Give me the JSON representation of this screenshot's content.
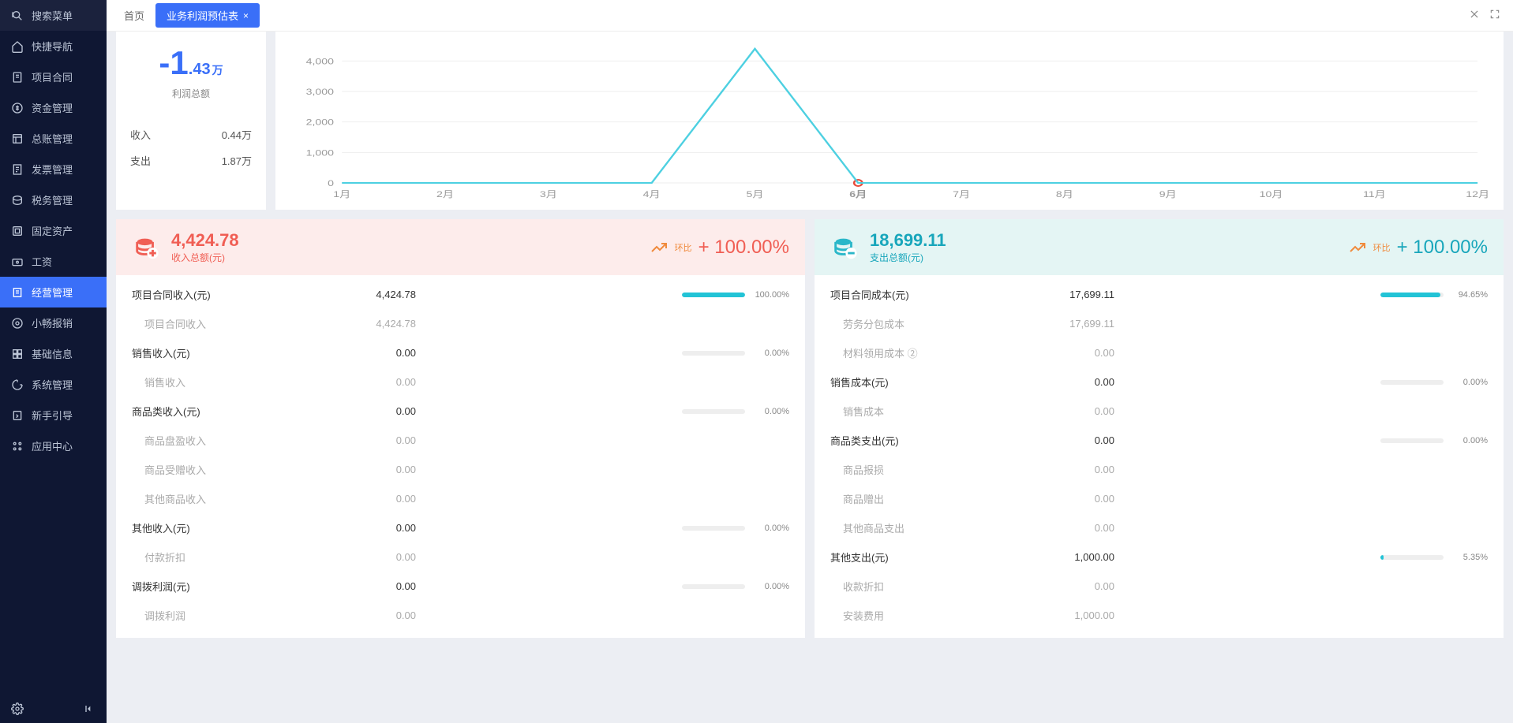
{
  "sidebar": {
    "items": [
      {
        "label": "搜索菜单",
        "icon": "search"
      },
      {
        "label": "快捷导航",
        "icon": "home"
      },
      {
        "label": "项目合同",
        "icon": "doc"
      },
      {
        "label": "资金管理",
        "icon": "money"
      },
      {
        "label": "总账管理",
        "icon": "book"
      },
      {
        "label": "发票管理",
        "icon": "invoice"
      },
      {
        "label": "税务管理",
        "icon": "tax"
      },
      {
        "label": "固定资产",
        "icon": "asset"
      },
      {
        "label": "工资",
        "icon": "salary"
      },
      {
        "label": "经营管理",
        "icon": "manage",
        "active": true
      },
      {
        "label": "小畅报销",
        "icon": "reimburse"
      },
      {
        "label": "基础信息",
        "icon": "info"
      },
      {
        "label": "系统管理",
        "icon": "system"
      },
      {
        "label": "新手引导",
        "icon": "guide"
      },
      {
        "label": "应用中心",
        "icon": "apps"
      }
    ]
  },
  "tabs": {
    "home": "首页",
    "active": "业务利润预估表"
  },
  "profit": {
    "int": "-1",
    "dec": ".43",
    "unit": "万",
    "label": "利润总额",
    "rows": [
      {
        "k": "收入",
        "v": "0.44万"
      },
      {
        "k": "支出",
        "v": "1.87万"
      }
    ]
  },
  "chart": {
    "type": "line",
    "xlabels": [
      "1月",
      "2月",
      "3月",
      "4月",
      "5月",
      "6月",
      "7月",
      "8月",
      "9月",
      "10月",
      "11月",
      "12月"
    ],
    "highlight_index": 5,
    "ylabels": [
      "0",
      "1,000",
      "2,000",
      "3,000",
      "4,000"
    ],
    "ylim": [
      0,
      4500
    ],
    "values": [
      0,
      0,
      0,
      0,
      4400,
      0,
      0,
      0,
      0,
      0,
      0,
      0
    ],
    "line_color": "#4dd0e1",
    "grid_color": "#eeeeee",
    "axis_color": "#cccccc",
    "bg": "#ffffff",
    "highlight_color": "#e74c3c"
  },
  "income": {
    "amount": "4,424.78",
    "sub": "收入总额(元)",
    "ring": "环比",
    "pct": "+ 100.00%",
    "rows": [
      {
        "name": "项目合同收入(元)",
        "val": "4,424.78",
        "pct": "100.00%",
        "fill": 100,
        "fill_color": "#22c3d6"
      },
      {
        "name": "项目合同收入",
        "val": "4,424.78",
        "sub": true
      },
      {
        "name": "销售收入(元)",
        "val": "0.00",
        "pct": "0.00%",
        "fill": 0
      },
      {
        "name": "销售收入",
        "val": "0.00",
        "sub": true
      },
      {
        "name": "商品类收入(元)",
        "val": "0.00",
        "pct": "0.00%",
        "fill": 0
      },
      {
        "name": "商品盘盈收入",
        "val": "0.00",
        "sub": true
      },
      {
        "name": "商品受赠收入",
        "val": "0.00",
        "sub": true
      },
      {
        "name": "其他商品收入",
        "val": "0.00",
        "sub": true
      },
      {
        "name": "其他收入(元)",
        "val": "0.00",
        "pct": "0.00%",
        "fill": 0
      },
      {
        "name": "付款折扣",
        "val": "0.00",
        "sub": true
      },
      {
        "name": "调拨利润(元)",
        "val": "0.00",
        "pct": "0.00%",
        "fill": 0
      },
      {
        "name": "调拨利润",
        "val": "0.00",
        "sub": true
      }
    ]
  },
  "expense": {
    "amount": "18,699.11",
    "sub": "支出总额(元)",
    "ring": "环比",
    "pct": "+ 100.00%",
    "rows": [
      {
        "name": "项目合同成本(元)",
        "val": "17,699.11",
        "pct": "94.65%",
        "fill": 94.65,
        "fill_color": "#22c3d6"
      },
      {
        "name": "劳务分包成本",
        "val": "17,699.11",
        "sub": true
      },
      {
        "name": "材料领用成本 ②",
        "val": "0.00",
        "sub": true
      },
      {
        "name": "销售成本(元)",
        "val": "0.00",
        "pct": "0.00%",
        "fill": 0
      },
      {
        "name": "销售成本",
        "val": "0.00",
        "sub": true
      },
      {
        "name": "商品类支出(元)",
        "val": "0.00",
        "pct": "0.00%",
        "fill": 0
      },
      {
        "name": "商品报损",
        "val": "0.00",
        "sub": true
      },
      {
        "name": "商品赠出",
        "val": "0.00",
        "sub": true
      },
      {
        "name": "其他商品支出",
        "val": "0.00",
        "sub": true
      },
      {
        "name": "其他支出(元)",
        "val": "1,000.00",
        "pct": "5.35%",
        "fill": 5.35,
        "fill_color": "#22c3d6"
      },
      {
        "name": "收款折扣",
        "val": "0.00",
        "sub": true
      },
      {
        "name": "安装费用",
        "val": "1,000.00",
        "sub": true
      }
    ]
  },
  "colors": {
    "sidebar_bg": "#0f1733",
    "accent": "#3a6ff8",
    "income": "#f05e54",
    "expense": "#18a6bb",
    "bar": "#22c3d6"
  }
}
